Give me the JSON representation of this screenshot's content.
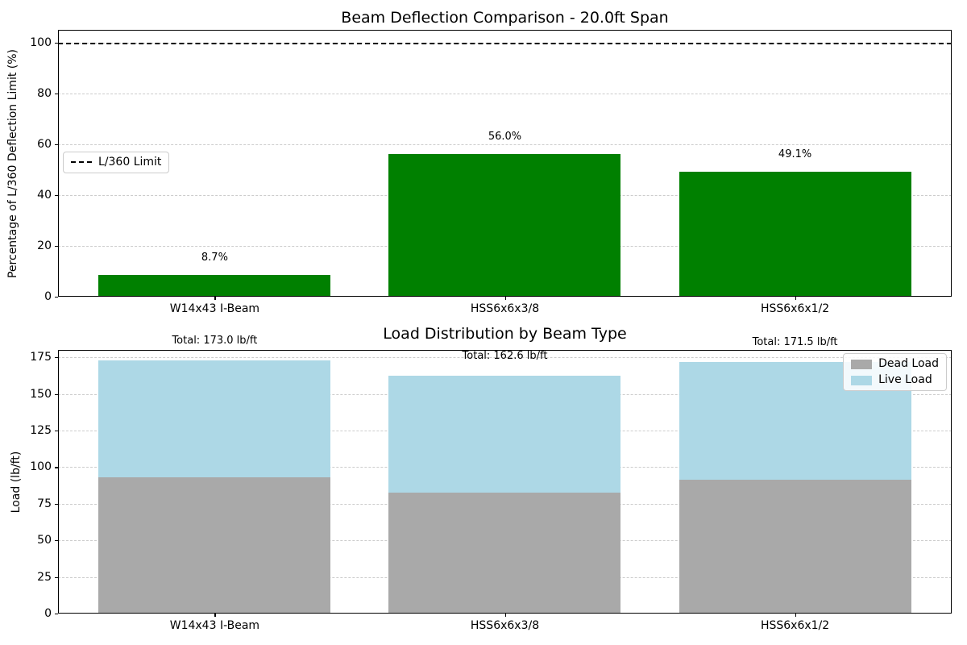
{
  "figure": {
    "background": "#ffffff"
  },
  "colors": {
    "deflection_bar": "#008000",
    "dead_load": "#a9a9a9",
    "live_load": "#add8e6",
    "grid": "#cccccc",
    "limit_line": "#000000"
  },
  "chart_data": [
    {
      "type": "bar",
      "title": "Beam Deflection Comparison - 20.0ft Span",
      "ylabel": "Percentage of L/360 Deflection Limit (%)",
      "xlabel": "",
      "categories": [
        "W14x43 I-Beam",
        "HSS6x6x3/8",
        "HSS6x6x1/2"
      ],
      "values": [
        8.7,
        56.0,
        49.1
      ],
      "value_labels": [
        "8.7%",
        "56.0%",
        "49.1%"
      ],
      "bar_color": "#008000",
      "ylim": [
        0,
        105
      ],
      "yticks": [
        0,
        20,
        40,
        60,
        80,
        100
      ],
      "grid": true,
      "reference_line": {
        "value": 100,
        "color": "#000000",
        "style": "dashed"
      },
      "legend": {
        "position": "center-left",
        "items": [
          {
            "label": "L/360 Limit",
            "swatch": "dashed-line",
            "color": "#000000"
          }
        ]
      }
    },
    {
      "type": "stacked-bar",
      "title": "Load Distribution by Beam Type",
      "ylabel": "Load (lb/ft)",
      "xlabel": "",
      "categories": [
        "W14x43 I-Beam",
        "HSS6x6x3/8",
        "HSS6x6x1/2"
      ],
      "series": [
        {
          "name": "Dead Load",
          "values": [
            93.0,
            82.6,
            91.5
          ],
          "color": "#a9a9a9"
        },
        {
          "name": "Live Load",
          "values": [
            80.0,
            80.0,
            80.0
          ],
          "color": "#add8e6"
        }
      ],
      "totals": [
        173.0,
        162.6,
        171.5
      ],
      "total_labels": [
        "Total: 173.0 lb/ft",
        "Total: 162.6 lb/ft",
        "Total: 171.5 lb/ft"
      ],
      "ylim": [
        0,
        180
      ],
      "yticks": [
        0,
        25,
        50,
        75,
        100,
        125,
        150,
        175
      ],
      "grid": true,
      "legend": {
        "position": "top-right",
        "items": [
          {
            "label": "Dead Load",
            "swatch": "rect",
            "color": "#a9a9a9"
          },
          {
            "label": "Live Load",
            "swatch": "rect",
            "color": "#add8e6"
          }
        ]
      }
    }
  ]
}
